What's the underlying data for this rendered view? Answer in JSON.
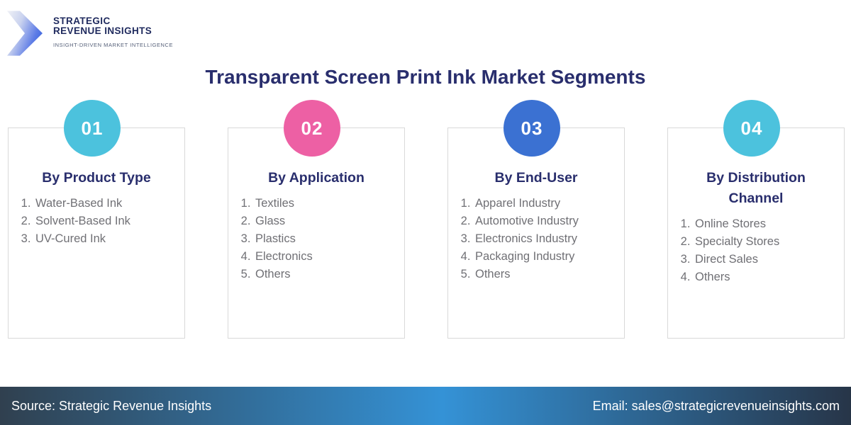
{
  "logo": {
    "brand_line1": "STRATEGIC",
    "brand_line2": "REVENUE INSIGHTS",
    "tagline": "INSIGHT-DRIVEN MARKET INTELLIGENCE"
  },
  "title": "Transparent Screen Print Ink Market Segments",
  "segments": [
    {
      "number": "01",
      "badge_color": "#4cc2dd",
      "heading": "By Product Type",
      "items": [
        "Water-Based Ink",
        "Solvent-Based Ink",
        "UV-Cured Ink"
      ]
    },
    {
      "number": "02",
      "badge_color": "#ed60a4",
      "heading": "By Application",
      "items": [
        "Textiles",
        "Glass",
        "Plastics",
        "Electronics",
        "Others"
      ]
    },
    {
      "number": "03",
      "badge_color": "#3b71d2",
      "heading": "By End-User",
      "items": [
        "Apparel Industry",
        "Automotive Industry",
        "Electronics Industry",
        "Packaging Industry",
        "Others"
      ]
    },
    {
      "number": "04",
      "badge_color": "#4cc2dd",
      "heading": "By Distribution Channel",
      "items": [
        "Online Stores",
        "Specialty Stores",
        "Direct Sales",
        "Others"
      ]
    }
  ],
  "footer": {
    "source": "Source: Strategic Revenue Insights",
    "email": "Email: sales@strategicrevenueinsights.com"
  },
  "colors": {
    "heading_navy": "#292e6d",
    "list_gray": "#707075",
    "accent_cyan": "#4cc2dd",
    "accent_pink": "#ed60a4",
    "accent_blue": "#3b71d2",
    "footer_gradient_left": "#30404f",
    "footer_gradient_mid": "#3492d6",
    "footer_gradient_right": "#273548"
  }
}
